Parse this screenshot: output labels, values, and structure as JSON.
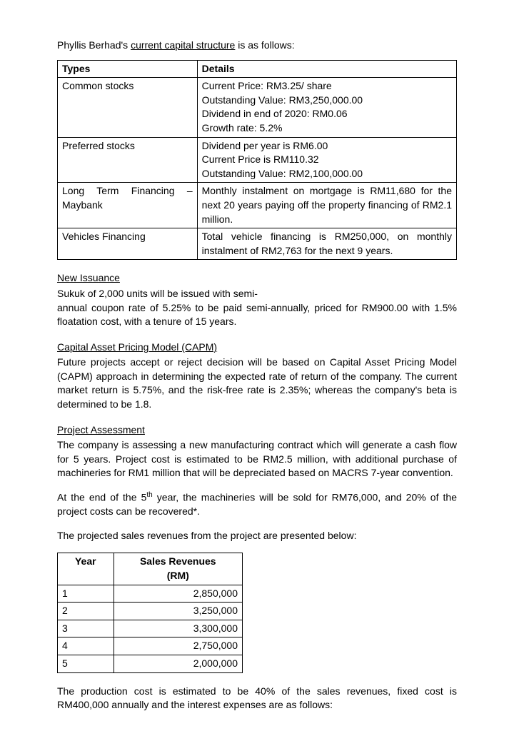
{
  "intro_prefix": "Phyllis Berhad's ",
  "intro_underline": "current capital structure",
  "intro_suffix": " is as follows:",
  "capital_table": {
    "header_types": "Types",
    "header_details": "Details",
    "rows": [
      {
        "type": "Common stocks",
        "details": [
          "Current Price: RM3.25/ share",
          "Outstanding Value: RM3,250,000.00",
          "Dividend in end of 2020: RM0.06",
          "Growth rate: 5.2%"
        ]
      },
      {
        "type": "Preferred stocks",
        "details": [
          "Dividend per year is RM6.00",
          "Current Price is RM110.32",
          "Outstanding Value: RM2,100,000.00"
        ]
      },
      {
        "type": "Long Term Financing – Maybank",
        "details": [
          "Monthly instalment on mortgage is RM11,680 for the next 20 years paying off the property financing of RM2.1 million."
        ],
        "justify": true
      },
      {
        "type": "Vehicles Financing",
        "details": [
          "Total vehicle financing is RM250,000, on monthly instalment of RM2,763 for the next 9 years."
        ],
        "justify": true
      }
    ]
  },
  "new_issuance": {
    "heading": "New Issuance",
    "line1": "Sukuk of 2,000 units will be issued with semi-",
    "line2": "annual coupon rate of 5.25% to be paid semi-annually, priced for RM900.00 with 1.5% floatation cost, with a tenure of 15 years."
  },
  "capm": {
    "heading": "Capital Asset Pricing Model (CAPM)",
    "text": "Future projects accept or reject decision will be based on Capital Asset Pricing Model (CAPM) approach in determining the expected rate of return of the company. The current market return is 5.75%, and the risk-free rate is 2.35%; whereas the company's beta is determined to be 1.8."
  },
  "project": {
    "heading": "Project Assessment",
    "p1": "The company is assessing a new manufacturing contract which will generate a cash flow for 5 years. Project cost is estimated to be RM2.5 million, with additional purchase of machineries for RM1 million that will be depreciated based on MACRS 7-year convention.",
    "p2_a": "At the end of the 5",
    "p2_sup": "th",
    "p2_b": " year, the machineries will be sold for RM76,000, and 20% of the project costs can be recovered*.",
    "p3": "The projected sales revenues from the project are presented below:"
  },
  "sales_table": {
    "header_year": "Year",
    "header_rev1": "Sales Revenues",
    "header_rev2": "(RM)",
    "rows": [
      {
        "year": "1",
        "rev": "2,850,000"
      },
      {
        "year": "2",
        "rev": "3,250,000"
      },
      {
        "year": "3",
        "rev": "3,300,000"
      },
      {
        "year": "4",
        "rev": "2,750,000"
      },
      {
        "year": "5",
        "rev": "2,000,000"
      }
    ]
  },
  "closing": "The production cost is estimated to be 40% of the sales revenues, fixed cost is RM400,000 annually and the interest expenses are as follows:"
}
